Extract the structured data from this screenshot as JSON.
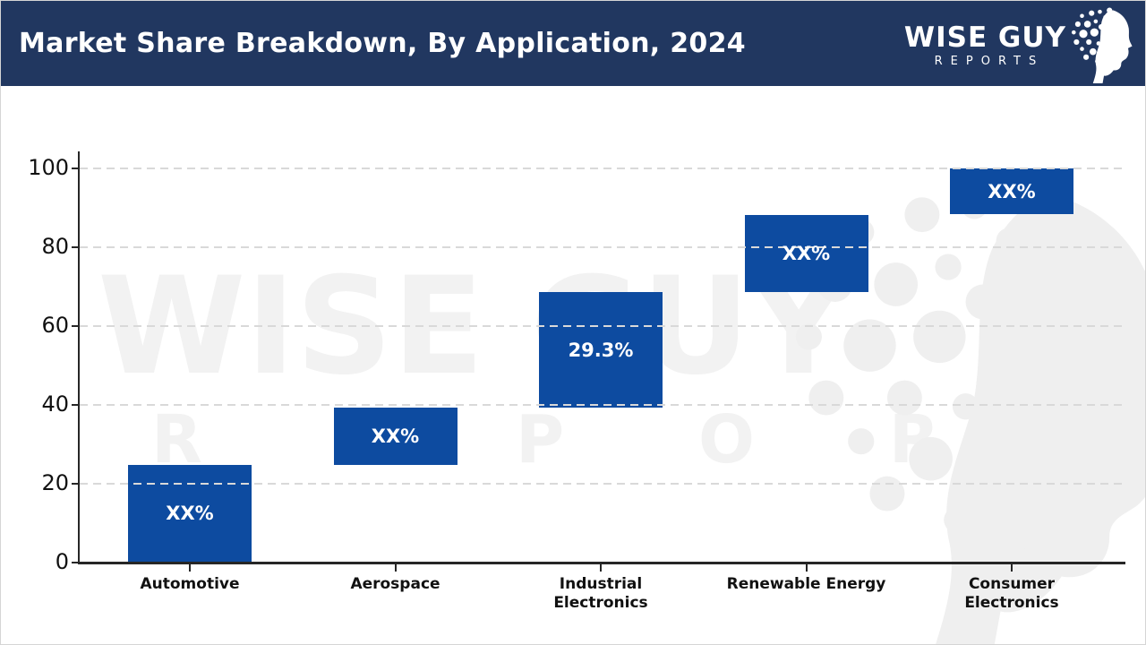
{
  "header": {
    "title": "Market Share Breakdown, By Application, 2024"
  },
  "logo": {
    "line1": "WISE GUY",
    "line2": "REPORTS"
  },
  "watermark": {
    "line1": "WISE GUY",
    "line2": "R E P O R T S"
  },
  "colors": {
    "header_bg": "#213760",
    "bar": "#0d4ba0",
    "grid": "#d9d9d9",
    "axis": "#262626",
    "watermark": "#f2f2f2"
  },
  "chart_data": {
    "type": "bar",
    "subtype": "floating-waterfall",
    "title": "Market Share Breakdown, By Application, 2024",
    "xlabel": "",
    "ylabel": "",
    "ylim": [
      0,
      105
    ],
    "yticks": [
      0,
      20,
      40,
      60,
      80,
      100
    ],
    "grid": "dashed-horizontal",
    "legend": "none",
    "bar_color": "#0d4ba0",
    "categories": [
      "Automotive",
      "Aerospace",
      "Industrial Electronics",
      "Renewable Energy",
      "Consumer Electronics"
    ],
    "bars": [
      {
        "category": "Automotive",
        "label": "XX%",
        "start": 0,
        "end": 24.8,
        "lines": [
          "Automotive"
        ]
      },
      {
        "category": "Aerospace",
        "label": "XX%",
        "start": 24.8,
        "end": 39.3,
        "lines": [
          "Aerospace"
        ]
      },
      {
        "category": "Industrial Electronics",
        "label": "29.3%",
        "start": 39.3,
        "end": 68.6,
        "lines": [
          "Industrial",
          "Electronics"
        ]
      },
      {
        "category": "Renewable Energy",
        "label": "XX%",
        "start": 68.6,
        "end": 88.2,
        "lines": [
          "Renewable Energy"
        ]
      },
      {
        "category": "Consumer Electronics",
        "label": "XX%",
        "start": 88.3,
        "end": 100,
        "lines": [
          "Consumer",
          "Electronics"
        ]
      }
    ]
  }
}
